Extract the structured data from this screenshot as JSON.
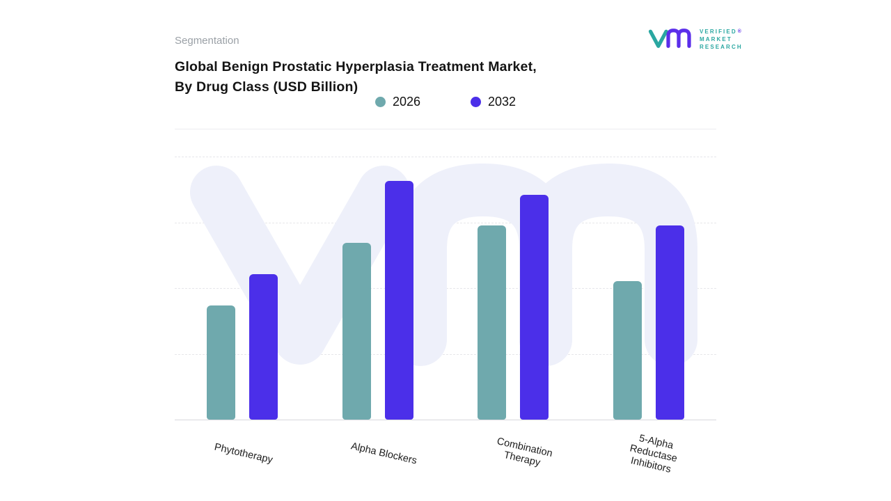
{
  "header": {
    "eyebrow": "Segmentation",
    "title_line1": "Global Benign Prostatic Hyperplasia Treatment Market,",
    "title_line2": "By Drug Class (USD Billion)"
  },
  "logo": {
    "lines": [
      "VERIFIED",
      "MARKET",
      "RESEARCH"
    ],
    "registered": "®",
    "teal": "#2aa7a1",
    "purple": "#5b2eea"
  },
  "legend": [
    {
      "label": "2026",
      "color": "#6fa9ad"
    },
    {
      "label": "2032",
      "color": "#4b2fe9"
    }
  ],
  "chart_data": {
    "type": "bar",
    "title": "Global Benign Prostatic Hyperplasia Treatment Market, By Drug Class (USD Billion)",
    "categories": [
      "Phytotherapy",
      "Alpha Blockers",
      "Combination Therapy",
      "5-Alpha Reductase Inhibitors"
    ],
    "categories_display": [
      [
        "Phytotherapy"
      ],
      [
        "Alpha Blockers"
      ],
      [
        "Combination",
        "Therapy"
      ],
      [
        "5-Alpha",
        "Reductase",
        "Inhibitors"
      ]
    ],
    "series": [
      {
        "name": "2026",
        "color": "#6fa9ad",
        "values": [
          1.65,
          2.55,
          2.8,
          2.0
        ]
      },
      {
        "name": "2032",
        "color": "#4b2fe9",
        "values": [
          2.1,
          3.45,
          3.25,
          2.8
        ]
      }
    ],
    "xlabel": "",
    "ylabel": "",
    "ylim": [
      0,
      3.8
    ],
    "unit": "USD Billion",
    "grid": "horizontal-dashed",
    "legend_position": "top",
    "colors": {
      "series_2026": "#6fa9ad",
      "series_2032": "#4b2fe9",
      "watermark": "#eef0fa"
    }
  }
}
